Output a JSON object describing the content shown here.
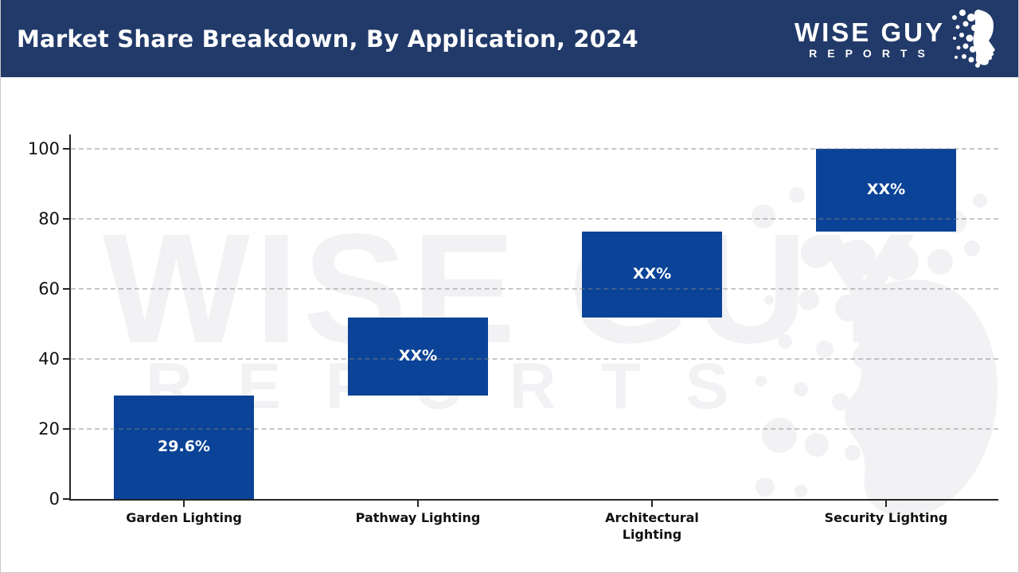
{
  "header": {
    "title": "Market Share Breakdown, By Application, 2024",
    "background_color": "#213a69",
    "logo": {
      "wordmark": "WISE GUY",
      "subtext": "REPORTS"
    }
  },
  "watermark": {
    "line1": "WISE GUY",
    "line2": "REPORTS"
  },
  "chart_data": {
    "type": "bar",
    "variant": "waterfall",
    "title": "Market Share Breakdown, By Application, 2024",
    "categories": [
      "Garden Lighting",
      "Pathway Lighting",
      "Architectural Lighting",
      "Security Lighting"
    ],
    "series": [
      {
        "name": "Market Share (%)",
        "segments": [
          {
            "category": "Garden Lighting",
            "start": 0,
            "end": 29.6,
            "label": "29.6%"
          },
          {
            "category": "Pathway Lighting",
            "start": 29.6,
            "end": 51.8,
            "label": "XX%"
          },
          {
            "category": "Architectural Lighting",
            "start": 51.8,
            "end": 76.4,
            "label": "XX%"
          },
          {
            "category": "Security Lighting",
            "start": 76.4,
            "end": 100,
            "label": "XX%"
          }
        ]
      }
    ],
    "xlabel": "",
    "ylabel": "",
    "ylim": [
      0,
      100
    ],
    "yticks": [
      0,
      20,
      40,
      60,
      80,
      100
    ],
    "grid": "horizontal-dashed",
    "legend": "none",
    "bar_color": "#0a4397",
    "bar_label_color": "#ffffff",
    "axis_color": "#262626"
  }
}
